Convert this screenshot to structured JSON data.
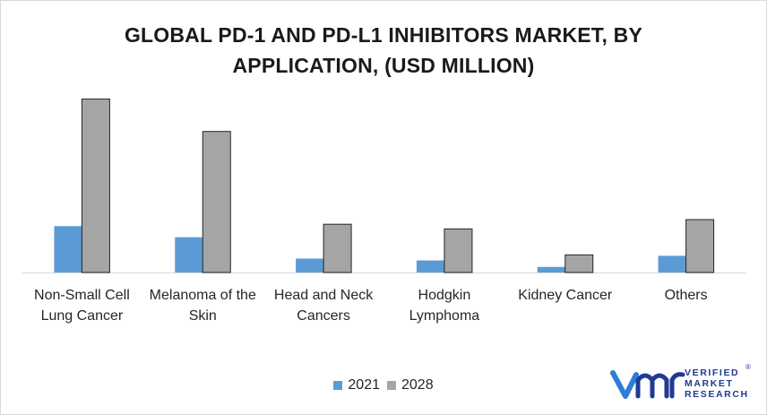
{
  "chart_data": {
    "type": "bar",
    "title_lines": [
      "GLOBAL PD-1 AND PD-L1 INHIBITORS MARKET, BY",
      "APPLICATION, (USD MILLION)"
    ],
    "categories": [
      [
        "Non-Small Cell",
        "Lung Cancer"
      ],
      [
        "Melanoma of the",
        "Skin"
      ],
      [
        "Head and Neck",
        "Cancers"
      ],
      [
        "Hodgkin",
        "Lymphoma"
      ],
      [
        "Kidney Cancer"
      ],
      [
        "Others"
      ]
    ],
    "series": [
      {
        "name": "2021",
        "color": "#5b9bd5",
        "values": [
          50,
          38,
          15,
          13,
          6,
          18
        ]
      },
      {
        "name": "2028",
        "color": "#a5a5a5",
        "values": [
          187,
          152,
          52,
          47,
          19,
          57
        ]
      }
    ],
    "ylim": [
      0,
      200
    ],
    "grid": false,
    "legend_position": "bottom"
  },
  "branding": {
    "logo_icon": "vmr-logo-icon",
    "logo_lines": [
      "VERIFIED",
      "MARKET",
      "RESEARCH"
    ],
    "registered_mark": "®"
  }
}
